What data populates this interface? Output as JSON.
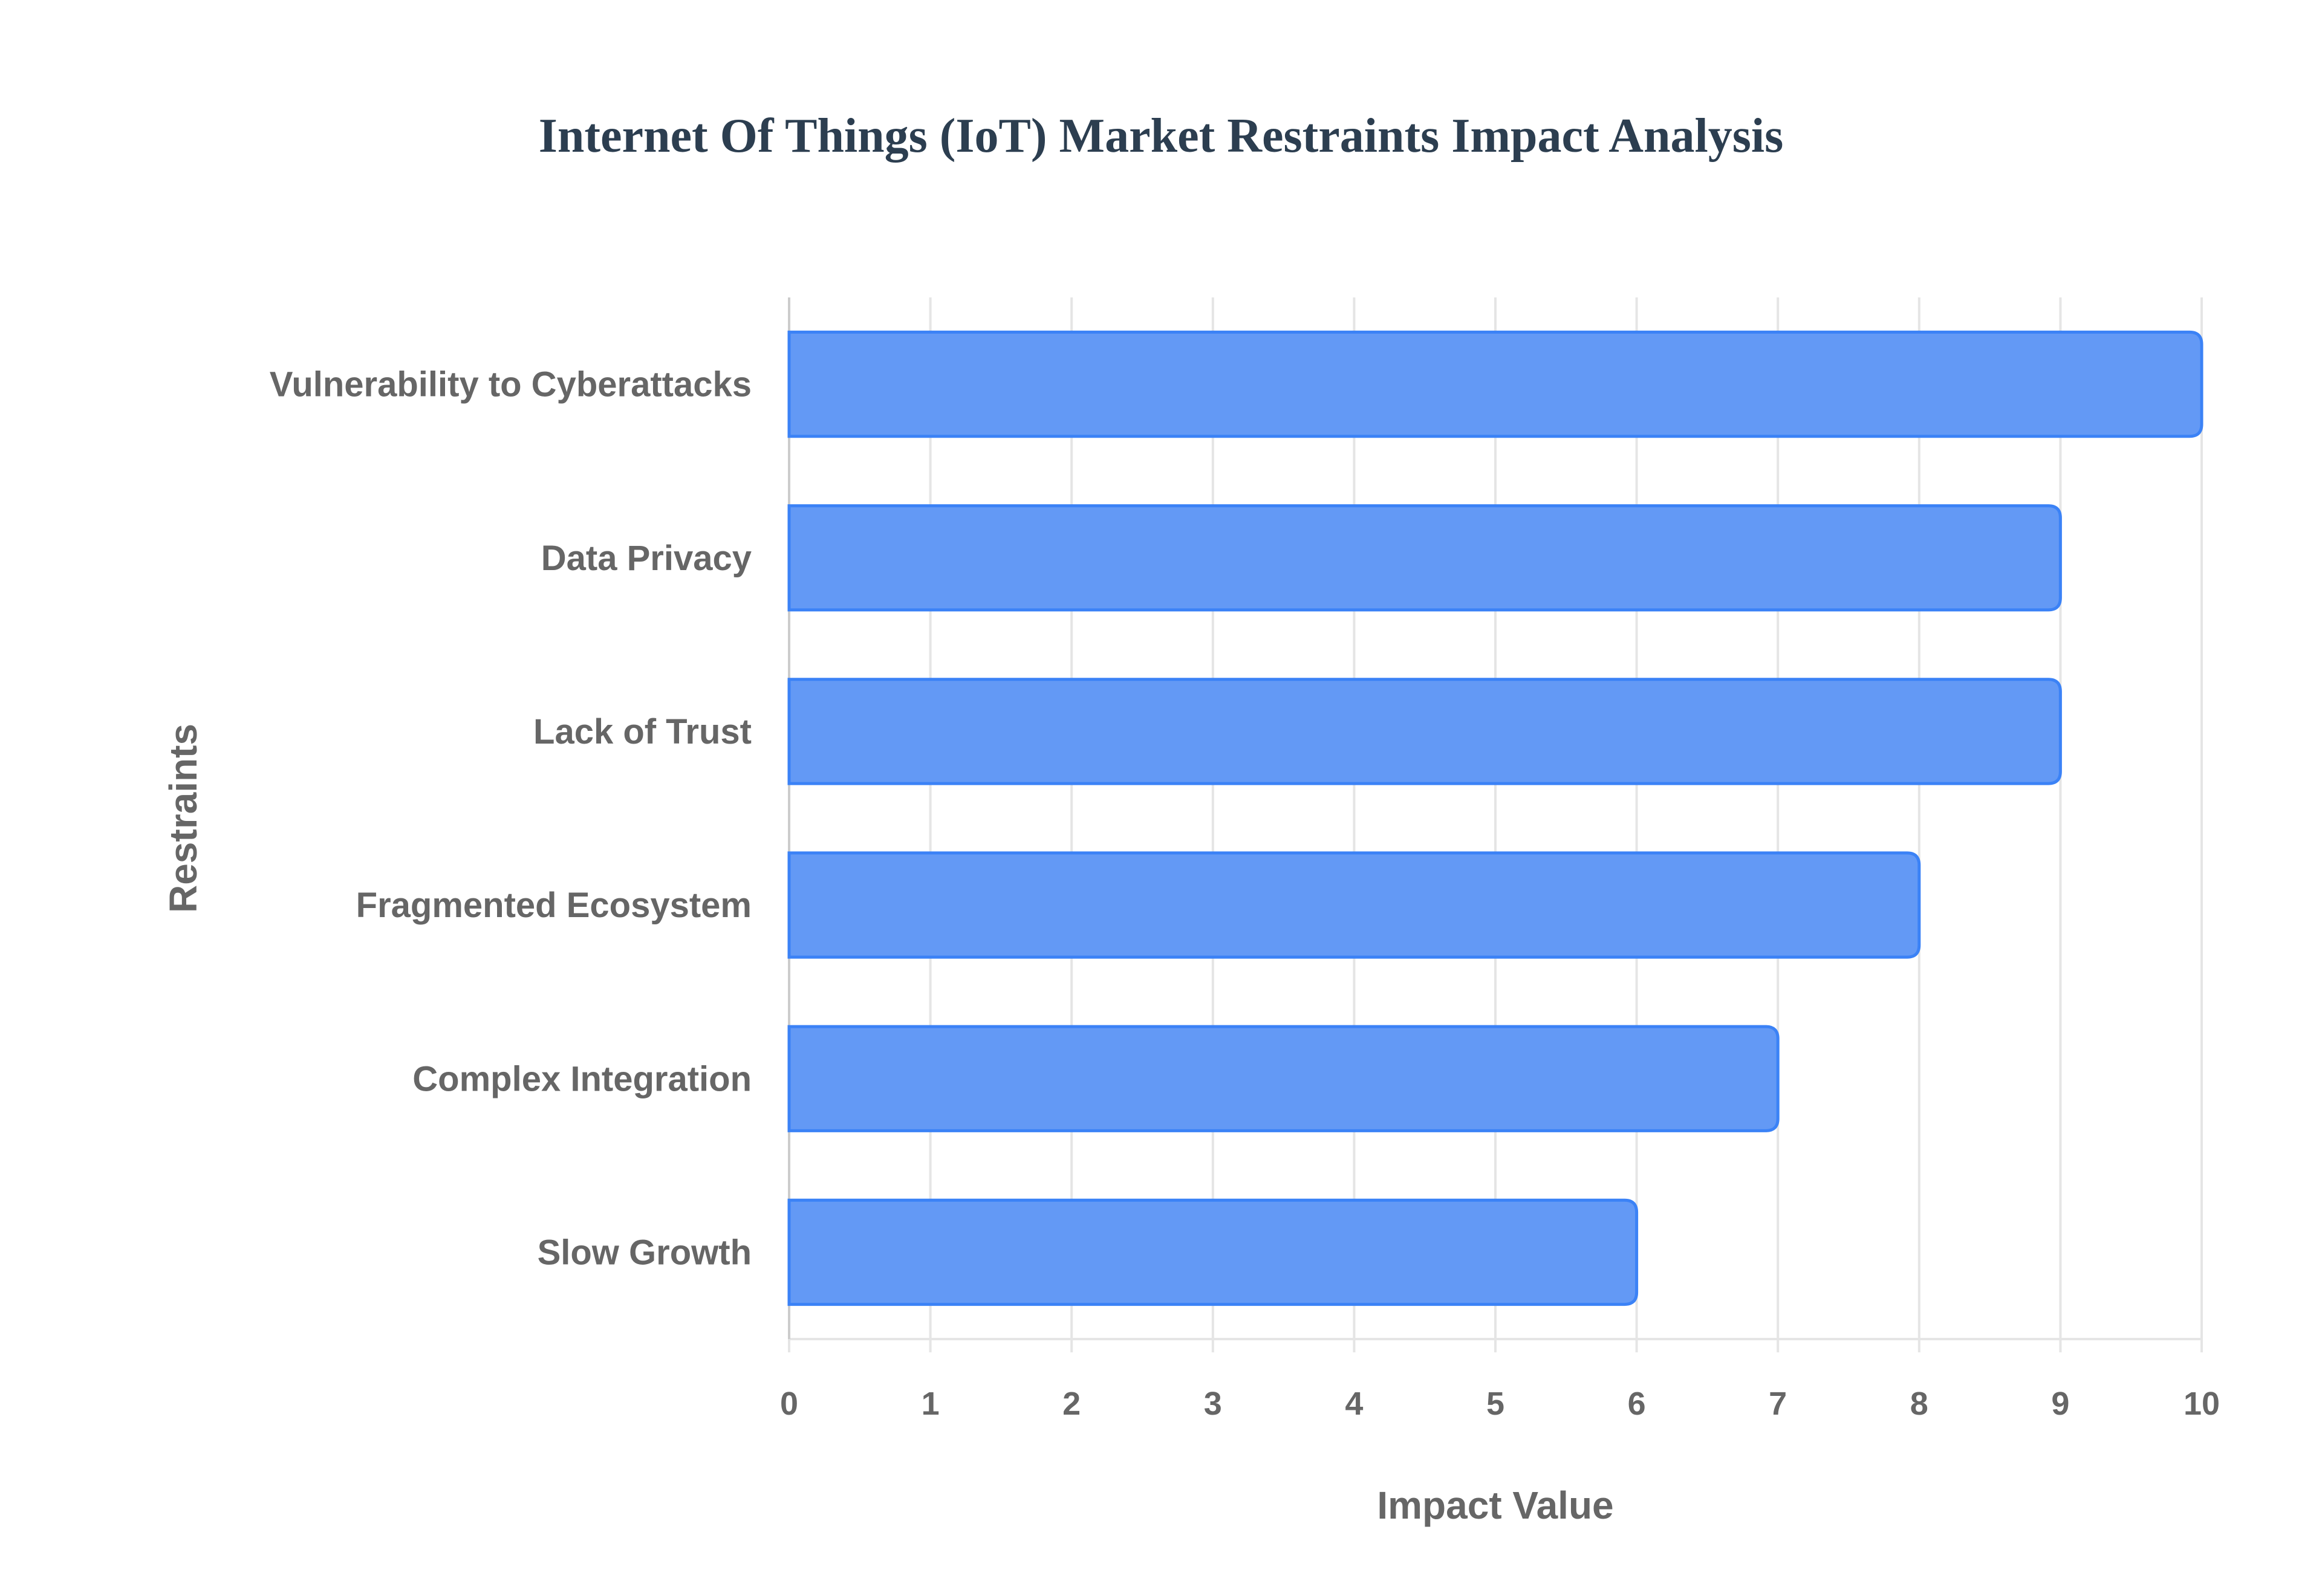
{
  "chart_data": {
    "type": "bar",
    "orientation": "horizontal",
    "title": "Internet Of Things (IoT) Market Restraints Impact Analysis",
    "categories": [
      "Vulnerability to Cyberattacks",
      "Data Privacy",
      "Lack of Trust",
      "Fragmented Ecosystem",
      "Complex Integration",
      "Slow Growth"
    ],
    "values": [
      10,
      9,
      9,
      8,
      7,
      6
    ],
    "xlabel": "Impact Value",
    "ylabel": "Restraints",
    "xlim": [
      0,
      10
    ],
    "xticks": [
      "0",
      "1",
      "2",
      "3",
      "4",
      "5",
      "6",
      "7",
      "8",
      "9",
      "10"
    ],
    "grid": true,
    "colors": {
      "bar_fill": "#6399f5",
      "bar_border": "#3b82f6",
      "grid": "#e5e5e5",
      "text": "#666666",
      "title": "#2c3e50"
    }
  }
}
